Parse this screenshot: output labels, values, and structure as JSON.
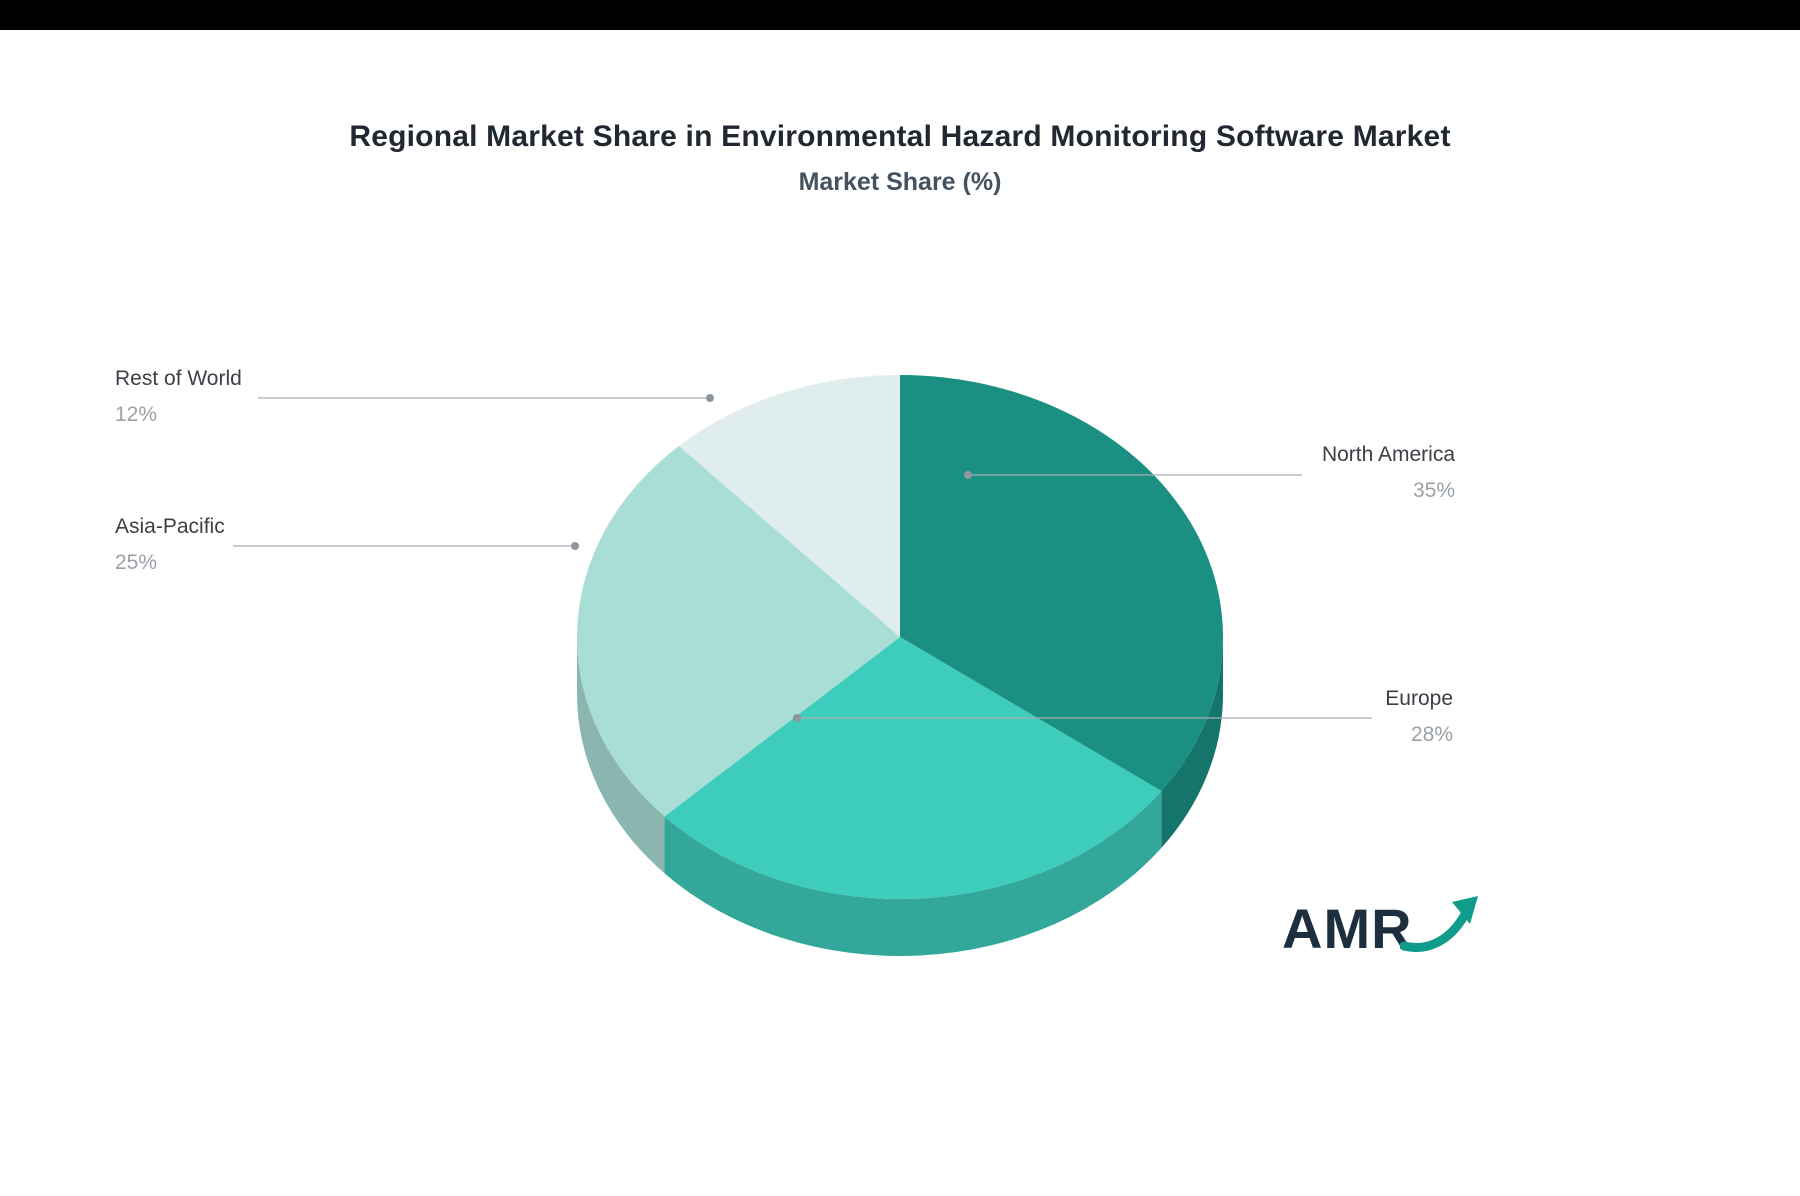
{
  "chart_data": {
    "type": "pie",
    "style": "3d",
    "title": "Regional Market Share in Environmental Hazard Monitoring Software Market",
    "subtitle": "Market Share (%)",
    "unit": "%",
    "direction": "clockwise",
    "start_angle_deg": 0,
    "legend": "none",
    "labels_leader_lines": true,
    "series": [
      {
        "label": "North America",
        "value": 35,
        "value_label": "35%",
        "color": "#1a8f82"
      },
      {
        "label": "Europe",
        "value": 28,
        "value_label": "28%",
        "color": "#3ecdbc"
      },
      {
        "label": "Asia-Pacific",
        "value": 25,
        "value_label": "25%",
        "color": "#a9ded7"
      },
      {
        "label": "Rest of World",
        "value": 12,
        "value_label": "12%",
        "color": "#dfeeec"
      }
    ],
    "leader_line_color": "#a6adb3",
    "leader_dot_color": "#8f969c"
  },
  "logo": {
    "text": "AMR",
    "arrow_color": "#0f9c8a"
  }
}
